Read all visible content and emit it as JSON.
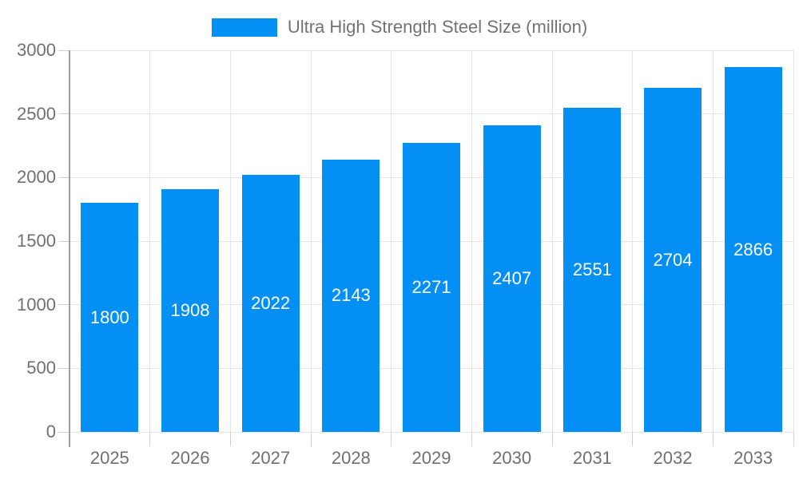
{
  "chart_data": {
    "type": "bar",
    "categories": [
      "2025",
      "2026",
      "2027",
      "2028",
      "2029",
      "2030",
      "2031",
      "2032",
      "2033"
    ],
    "series": [
      {
        "name": "Ultra High Strength Steel Size (million)",
        "values": [
          1800,
          1908,
          2022,
          2143,
          2271,
          2407,
          2551,
          2704,
          2866
        ]
      }
    ],
    "xlabel": "",
    "ylabel": "",
    "ylim": [
      0,
      3000
    ],
    "yticks": [
      0,
      500,
      1000,
      1500,
      2000,
      2500,
      3000
    ],
    "grid": true,
    "legend_position": "top",
    "value_label_position": "inside-center",
    "colors": {
      "bar": "#048FF4",
      "grid": "#E4E4E4",
      "axis": "#9E9E9E",
      "tick": "#CFCFCF",
      "axis_label": "#707070",
      "value_label": "#FFFFFF",
      "background": "#FFFFFF"
    }
  }
}
